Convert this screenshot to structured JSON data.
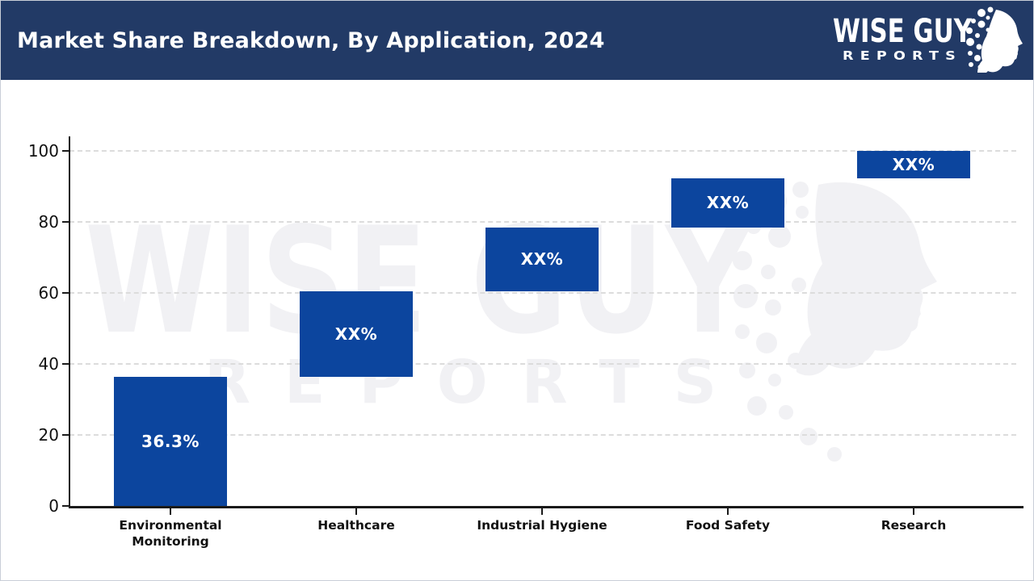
{
  "header": {
    "title": "Market Share Breakdown, By Application, 2024",
    "logo": {
      "line1": "WISE GUY",
      "line2": "REPORTS"
    }
  },
  "watermark": {
    "line1": "WISE GUY",
    "line2": "REPORTS"
  },
  "colors": {
    "header_bg": "#223A66",
    "bar_fill": "#0C459E",
    "axis": "#1A1A1A",
    "gridline": "#DCDCDC",
    "bar_label_text": "#FFFFFF",
    "watermark": "#F1F1F4"
  },
  "icons": {
    "logo_face": "dotted-face-profile-icon",
    "watermark_face": "dotted-face-profile-watermark"
  },
  "chart_data": {
    "type": "bar",
    "subtype": "waterfall",
    "title": "Market Share Breakdown, By Application, 2024",
    "categories": [
      "Environmental Monitoring",
      "Healthcare",
      "Industrial Hygiene",
      "Food Safety",
      "Research"
    ],
    "category_label_lines": [
      [
        "Environmental",
        "Monitoring"
      ],
      [
        "Healthcare"
      ],
      [
        "Industrial Hygiene"
      ],
      [
        "Food Safety"
      ],
      [
        "Research"
      ]
    ],
    "segments": [
      {
        "category": "Environmental Monitoring",
        "start": 0,
        "end": 36.3,
        "label": "36.3%"
      },
      {
        "category": "Healthcare",
        "start": 36.3,
        "end": 60.5,
        "label": "XX%"
      },
      {
        "category": "Industrial Hygiene",
        "start": 60.5,
        "end": 78.5,
        "label": "XX%"
      },
      {
        "category": "Food Safety",
        "start": 78.5,
        "end": 92.3,
        "label": "XX%"
      },
      {
        "category": "Research",
        "start": 92.3,
        "end": 100,
        "label": "XX%"
      }
    ],
    "ylim": [
      0,
      100
    ],
    "yticks": [
      0,
      20,
      40,
      60,
      80,
      100
    ],
    "grid": "horizontal-dashed",
    "legend": "none"
  }
}
